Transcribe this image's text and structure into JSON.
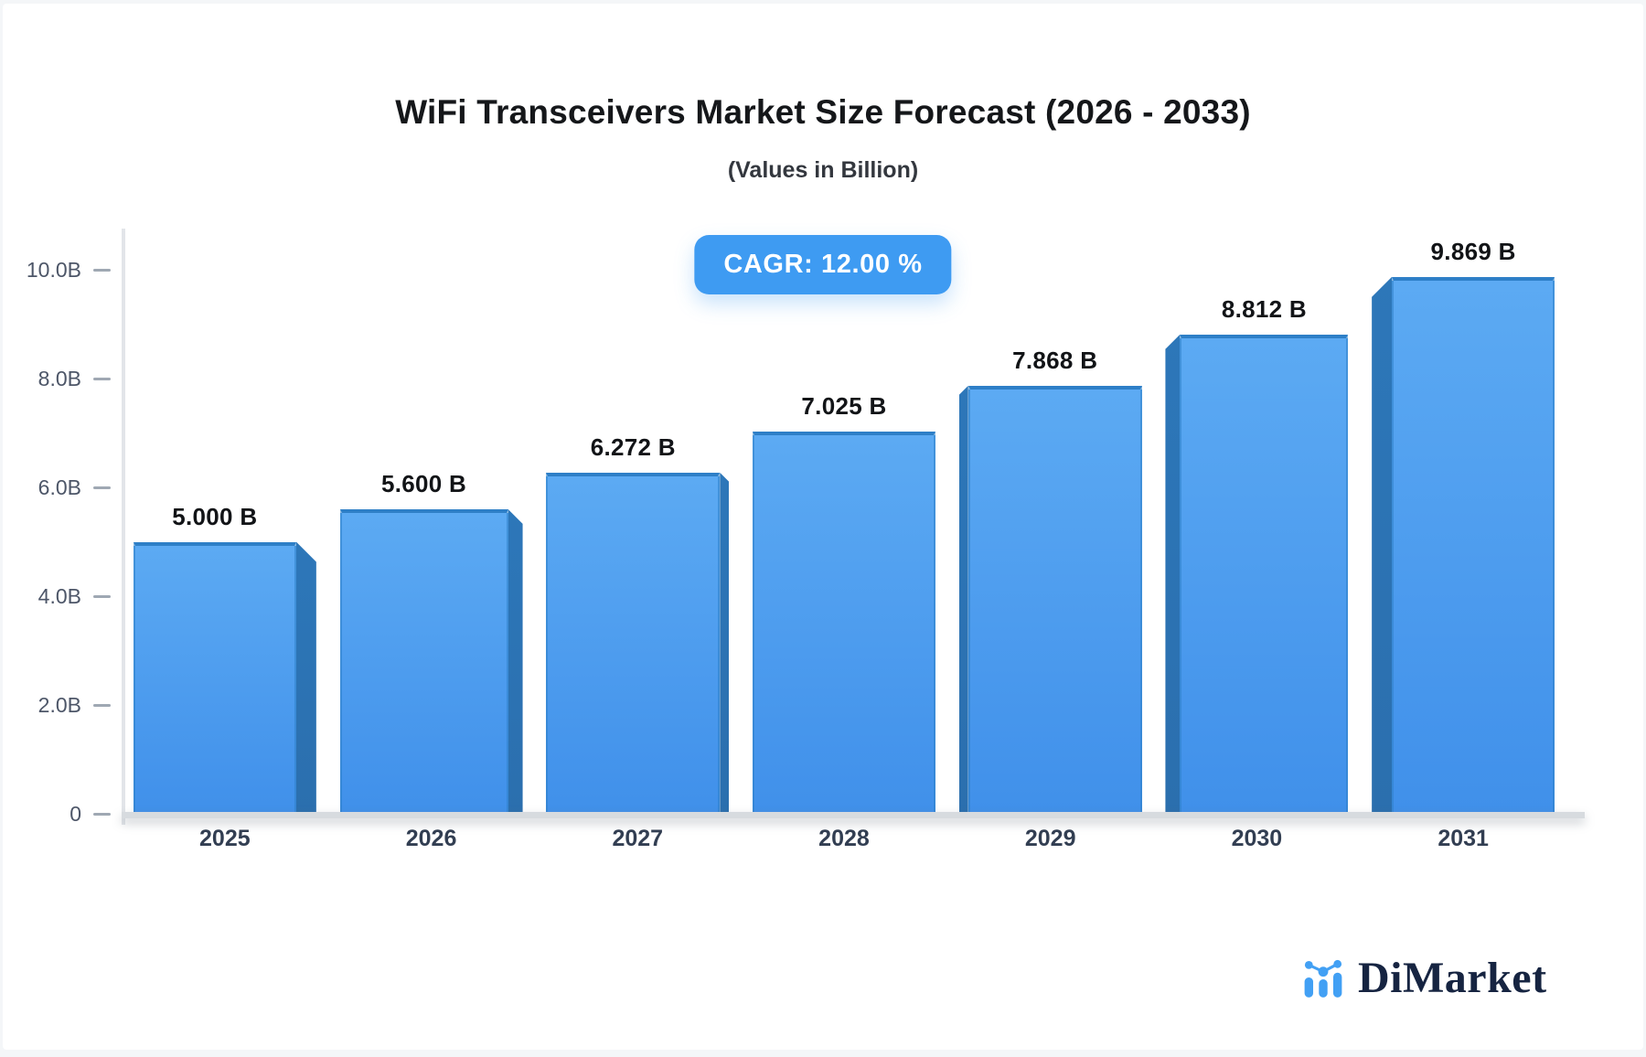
{
  "chart_data": {
    "type": "bar",
    "title": "WiFi Transceivers Market Size Forecast (2026 - 2033)",
    "subtitle": "(Values in Billion)",
    "unit": "Billion",
    "cagr_label": "CAGR: 12.00 %",
    "categories": [
      "2025",
      "2026",
      "2027",
      "2028",
      "2029",
      "2030",
      "2031"
    ],
    "values": [
      5.0,
      5.6,
      6.272,
      7.025,
      7.868,
      8.812,
      9.869
    ],
    "value_labels": [
      "5.000 B",
      "5.600 B",
      "6.272 B",
      "7.025 B",
      "7.868 B",
      "8.812 B",
      "9.869 B"
    ],
    "ylim": [
      0,
      10
    ],
    "y_ticks": [
      {
        "label": "10.0B",
        "value": 10
      },
      {
        "label": "8.0B",
        "value": 8
      },
      {
        "label": "6.0B",
        "value": 6
      },
      {
        "label": "4.0B",
        "value": 4
      },
      {
        "label": "2.0B",
        "value": 2
      },
      {
        "label": "0",
        "value": 0
      }
    ],
    "grid": false,
    "legend": false,
    "colors": {
      "bar_face_top": "#5caaf3",
      "bar_face_bottom": "#4090ea",
      "bar_side_top": "#2d77b9",
      "bar_side_bottom": "#2b6fae",
      "bar_border": "#2e7fc7",
      "badge_background": "#3e9bf2",
      "badge_text": "#ffffff",
      "axis_line": "#e2e5e9",
      "baseline": "#d7dbdf",
      "tick": "#9fa8b3",
      "y_label_text": "#4d5668",
      "x_label_text": "#323e52",
      "value_label_text": "#121417"
    }
  },
  "logo": {
    "text": "DiMarket",
    "icon": "bar-chart-line-logo-icon",
    "text_color": "#162441",
    "icon_color": "#42a0f4"
  }
}
